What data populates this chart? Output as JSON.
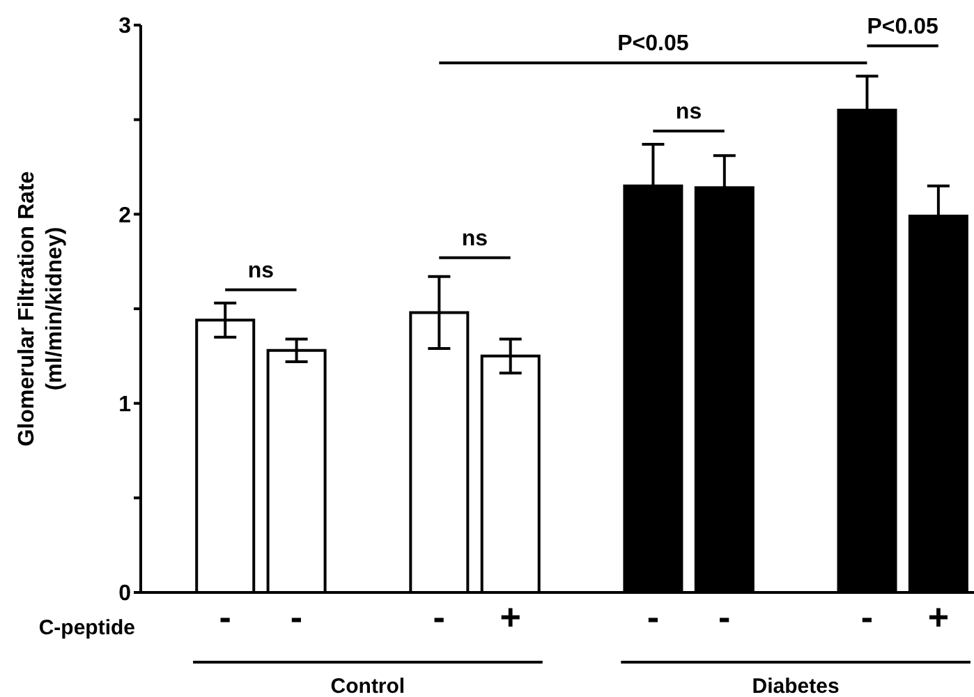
{
  "chart_data": {
    "type": "bar",
    "ylabel": "Glomerular Filtration Rate\n(ml/min/kidney)",
    "categories": [
      "-",
      "-",
      null,
      "-",
      "+",
      null,
      "-",
      "-",
      null,
      "-",
      "+"
    ],
    "values": [
      1.44,
      1.28,
      null,
      1.48,
      1.25,
      null,
      2.15,
      2.14,
      null,
      2.55,
      1.99
    ],
    "errors": [
      0.09,
      0.06,
      null,
      0.19,
      0.09,
      null,
      0.22,
      0.17,
      null,
      0.18,
      0.16
    ],
    "colors": [
      "#ffffff",
      "#ffffff",
      null,
      "#ffffff",
      "#ffffff",
      null,
      "#000000",
      "#000000",
      null,
      "#000000",
      "#000000"
    ],
    "ylim": [
      0,
      3
    ],
    "yticks": [
      0,
      {
        "value": 0.5,
        "label": null
      },
      1,
      {
        "value": 1.5,
        "label": null
      },
      2,
      {
        "value": 2.5,
        "label": null
      },
      3
    ],
    "grid": false,
    "legend": false,
    "annotations": [
      "ns",
      "ns",
      "ns",
      "P<0.05",
      "P<0.05",
      "C-peptide",
      "Control",
      "Diabetes"
    ]
  }
}
